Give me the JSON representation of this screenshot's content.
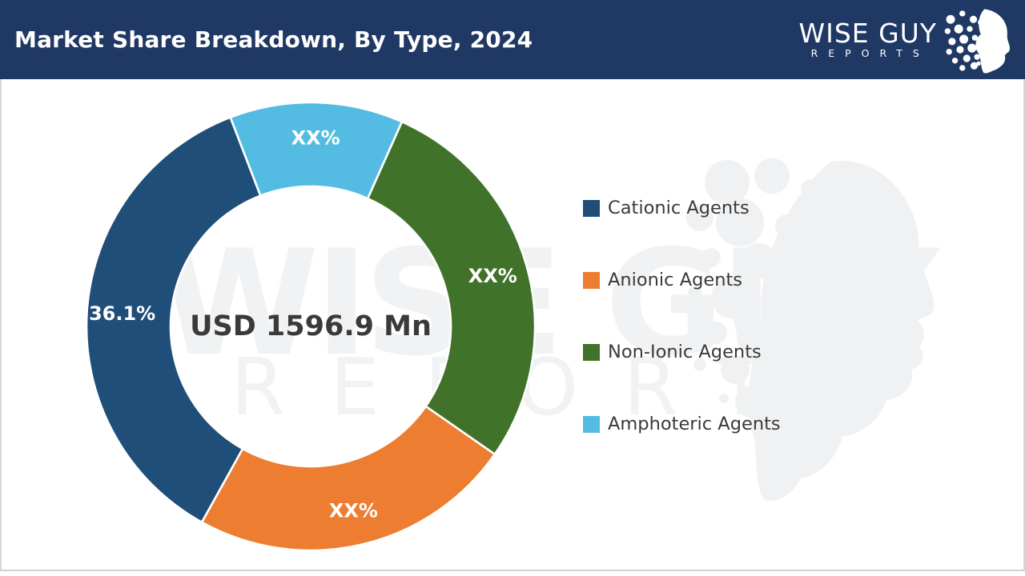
{
  "header": {
    "title": "Market Share Breakdown, By Type, 2024",
    "logo": {
      "line1": "WISE GUY",
      "line2": "REPORTS"
    }
  },
  "watermark": {
    "line1": "WISE GUY",
    "line2": "REPORTS"
  },
  "chart_data": {
    "type": "pie",
    "donut": true,
    "title": "Market Share Breakdown, By Type, 2024",
    "center_label": "USD 1596.9 Mn",
    "legend_position": "right",
    "start_angle_deg": 111,
    "counterclockwise": true,
    "slices": [
      {
        "label": "Cationic Agents",
        "display_value": "36.1%",
        "value_pct_est": 36.1,
        "color": "#1F4E79"
      },
      {
        "label": "Anionic Agents",
        "display_value": "XX%",
        "value_pct_est": 23.4,
        "color": "#ED7D31"
      },
      {
        "label": "Non-Ionic Agents",
        "display_value": "XX%",
        "value_pct_est": 28.0,
        "color": "#41722A"
      },
      {
        "label": "Amphoteric Agents",
        "display_value": "XX%",
        "value_pct_est": 12.5,
        "color": "#54BCE2"
      }
    ]
  }
}
